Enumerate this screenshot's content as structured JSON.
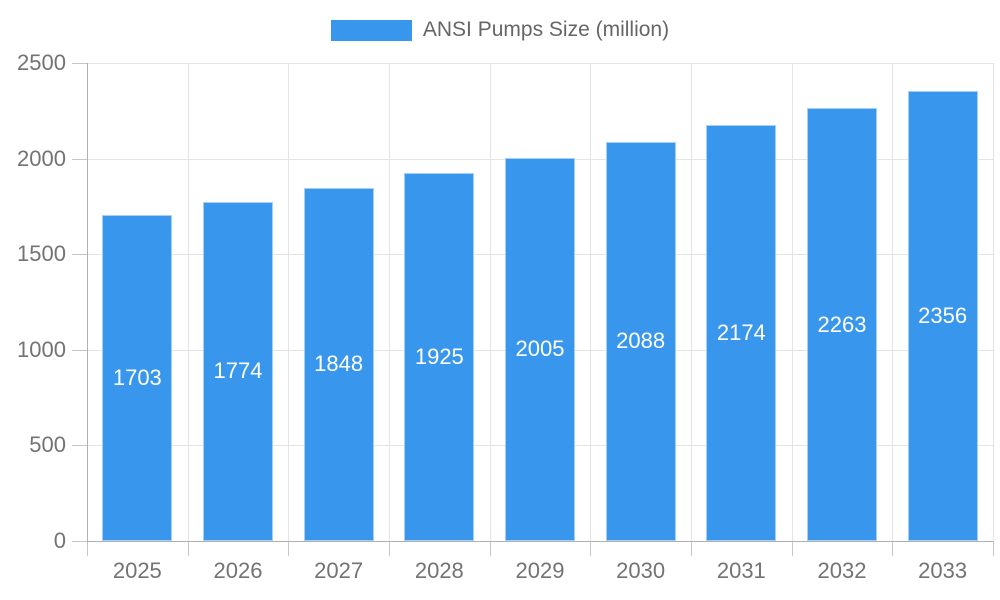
{
  "legend": {
    "label": "ANSI Pumps Size (million)"
  },
  "chart_data": {
    "type": "bar",
    "title": "",
    "categories": [
      "2025",
      "2026",
      "2027",
      "2028",
      "2029",
      "2030",
      "2031",
      "2032",
      "2033"
    ],
    "series": [
      {
        "name": "ANSI Pumps Size (million)",
        "values": [
          1703,
          1774,
          1848,
          1925,
          2005,
          2088,
          2174,
          2263,
          2356
        ]
      }
    ],
    "bar_value_labels": [
      "1703",
      "1774",
      "1848",
      "1925",
      "2005",
      "2088",
      "2174",
      "2263",
      "2356"
    ],
    "xlabel": "",
    "ylabel": "",
    "ylim": [
      0,
      2500
    ],
    "yticks": [
      0,
      500,
      1000,
      1500,
      2000,
      2500
    ],
    "grid": true,
    "legend_position": "top",
    "colors": {
      "bar_fill": "#3897ec",
      "bar_border": "rgba(255,255,255,0.55)",
      "bar_label_text": "#ffffff",
      "grid_line": "#e4e4e4",
      "axis_line": "#b0b0b0",
      "tick_mark": "#c6c6c6",
      "axis_text": "#737373",
      "legend_text": "#666666"
    }
  }
}
